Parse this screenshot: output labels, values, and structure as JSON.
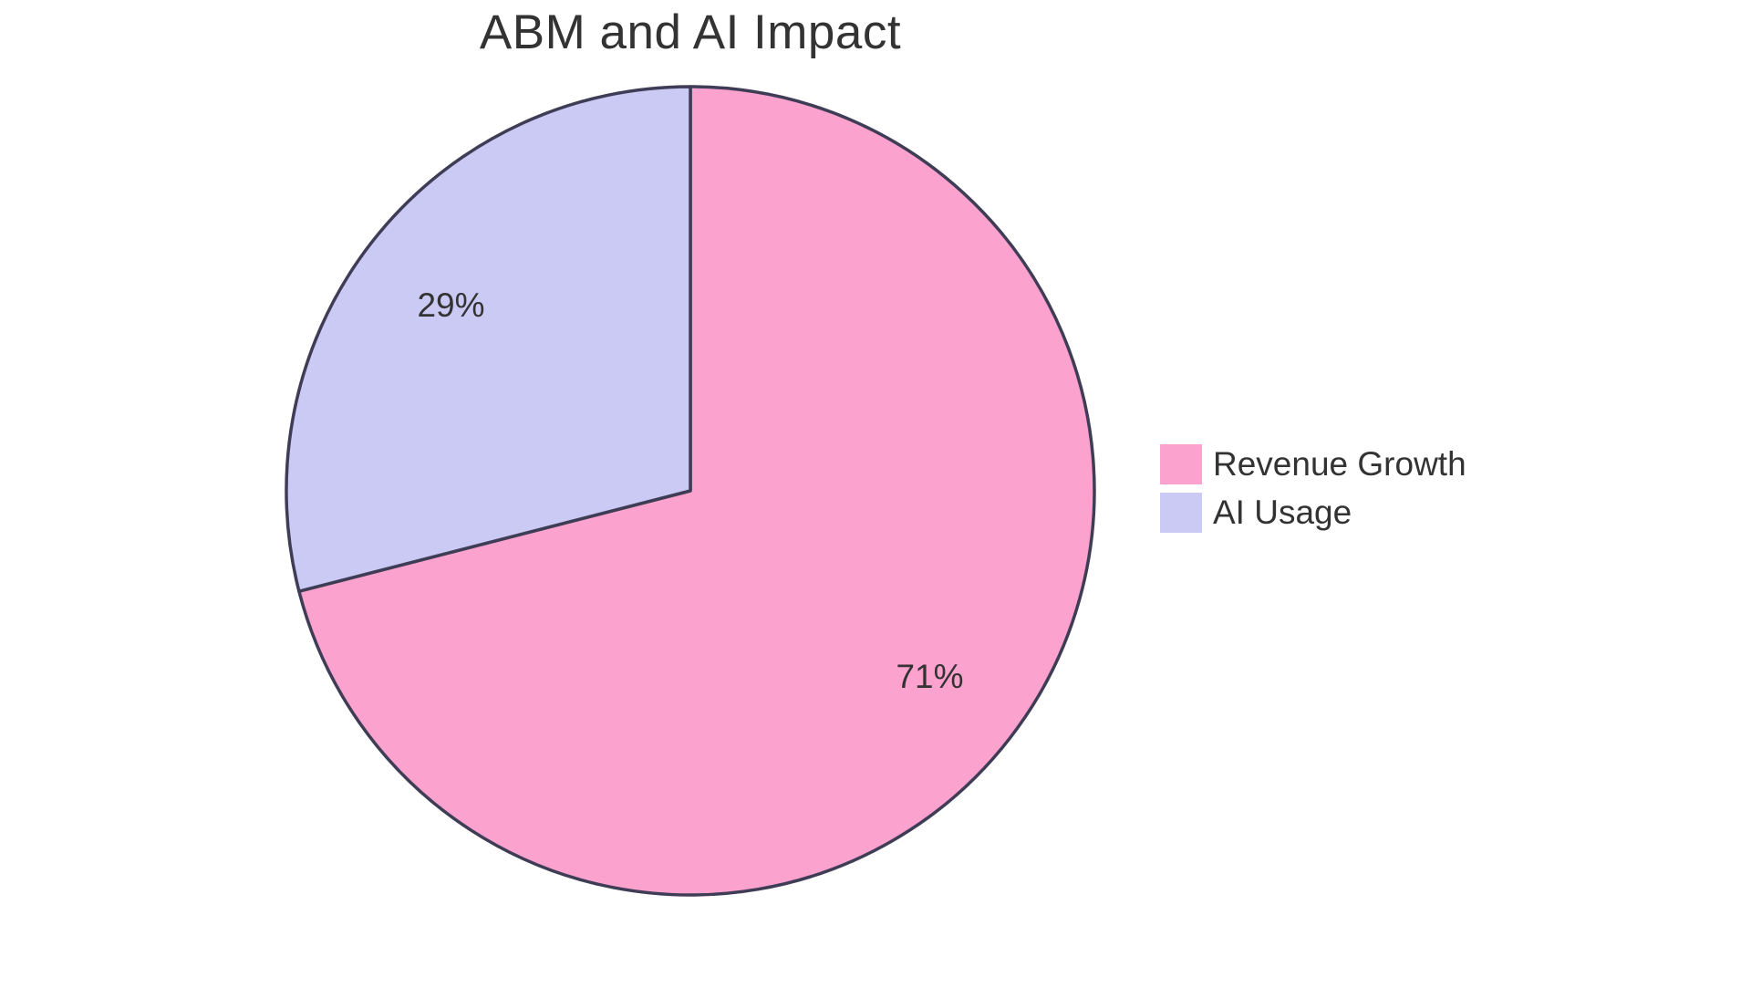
{
  "title": "ABM and AI Impact",
  "chart_data": {
    "type": "pie",
    "title": "ABM and AI Impact",
    "labels": [
      "Revenue Growth",
      "AI Usage"
    ],
    "values": [
      71,
      29
    ],
    "value_labels": [
      "71%",
      "29%"
    ],
    "colors": [
      "#FCA2CE",
      "#CBCAF4"
    ],
    "outline_color": "#3F3D56",
    "label_color": "#333333",
    "background_color": "#FFFFFF",
    "legend_position": "right",
    "legend_entries": [
      "Revenue Growth",
      "AI Usage"
    ],
    "start_angle": "12 o'clock",
    "direction": "clockwise"
  }
}
